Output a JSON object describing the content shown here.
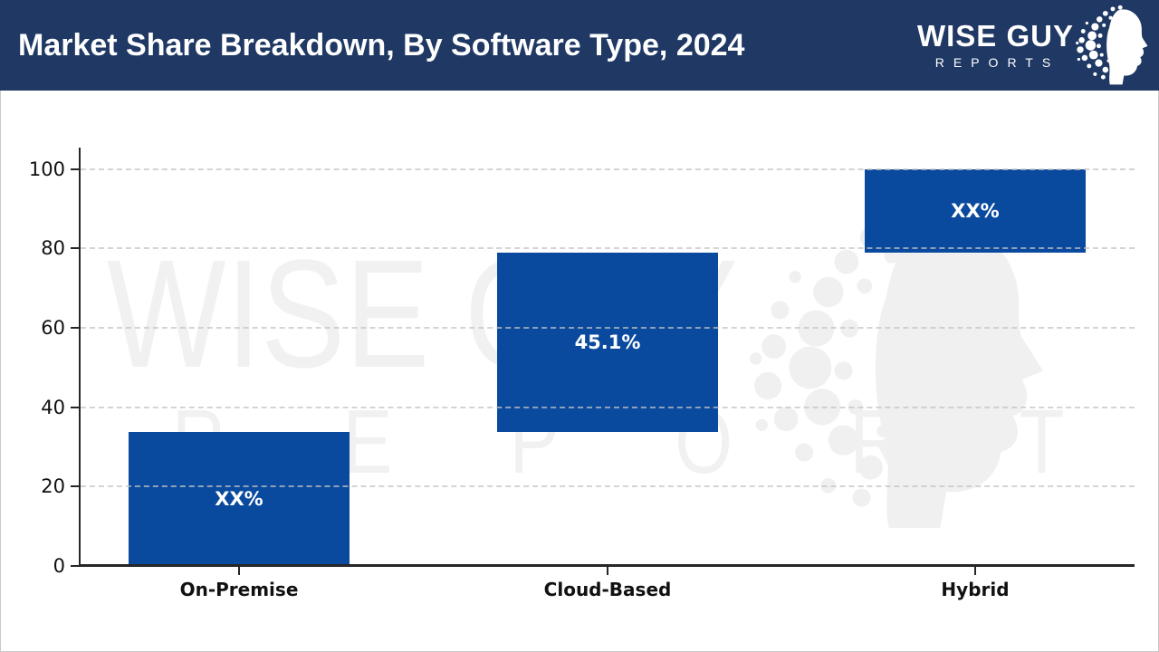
{
  "header": {
    "title": "Market Share Breakdown, By Software Type, 2024",
    "logo": {
      "name_line": "WISE GUY",
      "sub_line": "REPORTS"
    }
  },
  "watermark": {
    "name_line": "WISE GUY",
    "sub_line": "R E P O R T S"
  },
  "chart_data": {
    "type": "bar",
    "subtype": "floating-waterfall",
    "title": "Market Share Breakdown, By Software Type, 2024",
    "categories": [
      "On-Premise",
      "Cloud-Based",
      "Hybrid"
    ],
    "series": [
      {
        "name": "Market Share (%)",
        "segments": [
          {
            "category": "On-Premise",
            "start": 0,
            "end": 33.8,
            "value": 33.8,
            "value_label": "XX%"
          },
          {
            "category": "Cloud-Based",
            "start": 33.8,
            "end": 78.9,
            "value": 45.1,
            "value_label": "45.1%"
          },
          {
            "category": "Hybrid",
            "start": 78.9,
            "end": 100,
            "value": 21.1,
            "value_label": "XX%"
          }
        ]
      }
    ],
    "xlabel": "",
    "ylabel": "",
    "yticks": [
      0,
      20,
      40,
      60,
      80,
      100
    ],
    "ylim": [
      0,
      105
    ],
    "grid": "horizontal-dashed",
    "legend": "none",
    "bar_color": "#0A4A9E",
    "bar_label_color": "#FFFFFF"
  },
  "colors": {
    "header_bg": "#1F3864",
    "bar": "#0A4A9E",
    "axis": "#262626",
    "gridline": "#C3C3C3",
    "watermark": "#F1F1F1",
    "frame_border": "#C9C9C9"
  }
}
